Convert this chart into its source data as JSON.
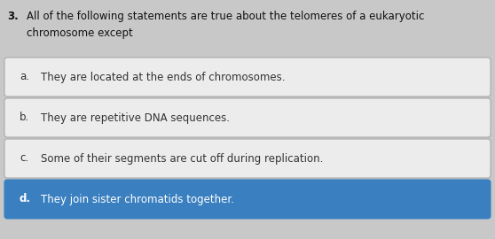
{
  "question_number": "3.",
  "question_text": "All of the following statements are true about the telomeres of a eukaryotic\nchromosome except",
  "options": [
    {
      "label": "a.",
      "text": "They are located at the ends of chromosomes.",
      "selected": false
    },
    {
      "label": "b.",
      "text": "They are repetitive DNA sequences.",
      "selected": false
    },
    {
      "label": "c.",
      "text": "Some of their segments are cut off during replication.",
      "selected": false
    },
    {
      "label": "d.",
      "text": "They join sister chromatids together.",
      "selected": true
    }
  ],
  "background_color": "#c8c8c8",
  "box_color_normal": "#ececec",
  "box_color_selected": "#3a80c0",
  "box_border_color": "#aaaaaa",
  "text_color_normal": "#333333",
  "text_color_selected": "#ffffff",
  "question_color": "#111111",
  "label_fontsize": 8.5,
  "text_fontsize": 8.5,
  "question_fontsize": 8.5
}
